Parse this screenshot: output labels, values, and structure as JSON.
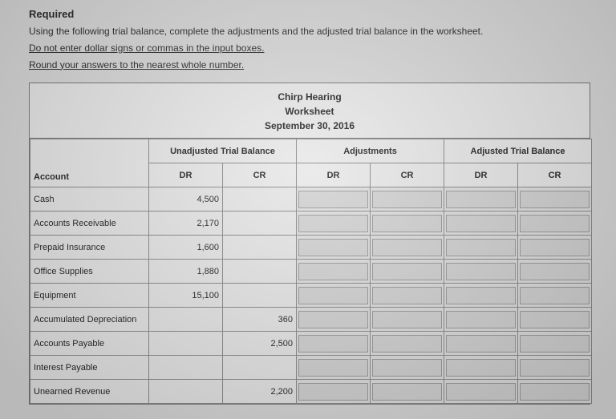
{
  "required_title": "Required",
  "instructions": [
    {
      "text": "Using the following trial balance, complete the adjustments and the adjusted trial balance in the worksheet.",
      "underline": false
    },
    {
      "text": "Do not enter dollar signs or commas in the input boxes.",
      "underline": true
    },
    {
      "text": "Round your answers to the nearest whole number.",
      "underline": true
    }
  ],
  "worksheet": {
    "title_line1": "Chirp Hearing",
    "title_line2": "Worksheet",
    "title_line3": "September 30, 2016",
    "section_headers": [
      "Unadjusted Trial Balance",
      "Adjustments",
      "Adjusted Trial Balance"
    ],
    "colgroups": [
      "Account",
      "DR",
      "CR",
      "DR",
      "CR",
      "DR",
      "CR"
    ],
    "rows": [
      {
        "account": "Cash",
        "utb_dr": "4,500",
        "utb_cr": ""
      },
      {
        "account": "Accounts Receivable",
        "utb_dr": "2,170",
        "utb_cr": ""
      },
      {
        "account": "Prepaid Insurance",
        "utb_dr": "1,600",
        "utb_cr": ""
      },
      {
        "account": "Office Supplies",
        "utb_dr": "1,880",
        "utb_cr": ""
      },
      {
        "account": "Equipment",
        "utb_dr": "15,100",
        "utb_cr": ""
      },
      {
        "account": "Accumulated Depreciation",
        "utb_dr": "",
        "utb_cr": "360"
      },
      {
        "account": "Accounts Payable",
        "utb_dr": "",
        "utb_cr": "2,500"
      },
      {
        "account": "Interest Payable",
        "utb_dr": "",
        "utb_cr": ""
      },
      {
        "account": "Unearned Revenue",
        "utb_dr": "",
        "utb_cr": "2,200"
      }
    ]
  },
  "styling": {
    "page_bg": "#d9d9d9",
    "table_border": "#888888",
    "header_bg": "#e8e8e8",
    "cell_bg": "#e6e6e6",
    "input_bg": "#d2d2d2",
    "text_color": "#222222",
    "font_family": "Arial",
    "title_fontsize_pt": 10,
    "body_fontsize_pt": 9
  }
}
